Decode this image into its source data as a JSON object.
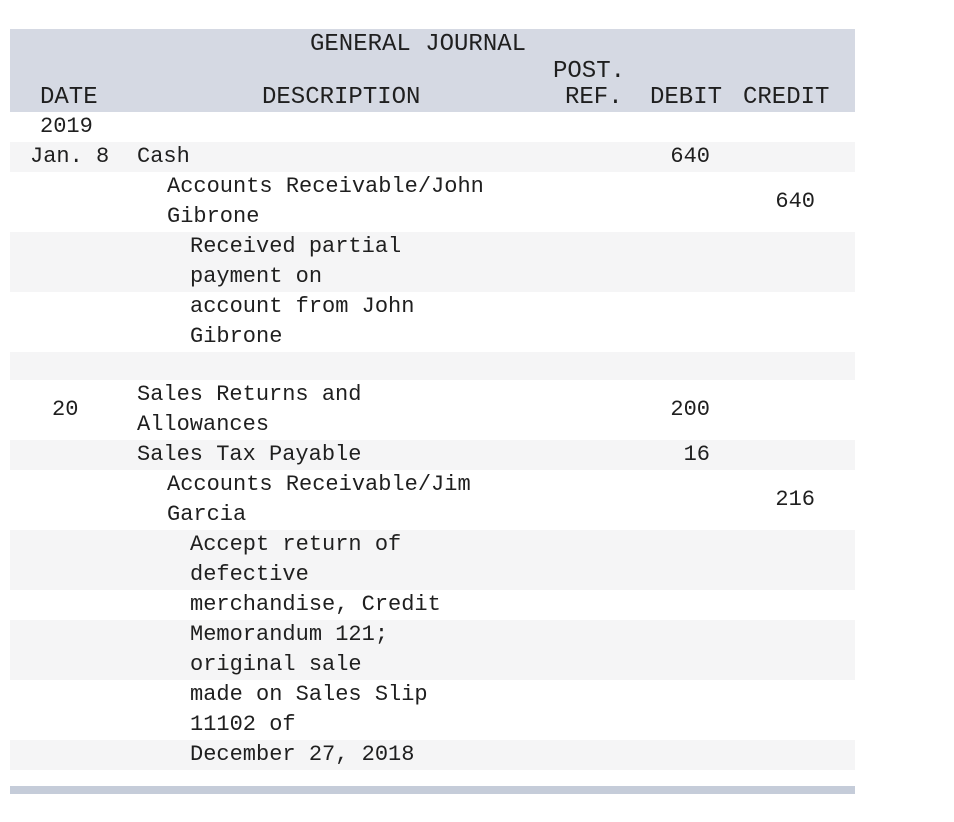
{
  "journal": {
    "title": "GENERAL JOURNAL",
    "colors": {
      "header_bg": "#d5d9e3",
      "stripe_bg": "#f5f5f6",
      "footer_bar": "#c5ccd9",
      "text": "#1f1f1f"
    },
    "columns": {
      "date": "DATE",
      "description": "DESCRIPTION",
      "post_ref_top": "POST.",
      "post_ref_bottom": "REF.",
      "debit": "DEBIT",
      "credit": "CREDIT"
    },
    "rows": [
      {
        "date": "2019",
        "date_kind": "year",
        "desc": "",
        "indent": 0,
        "debit": "",
        "credit": ""
      },
      {
        "date": "Jan. 8",
        "date_kind": "month_day",
        "desc": "Cash",
        "indent": 0,
        "debit": "640",
        "credit": ""
      },
      {
        "date": "",
        "date_kind": "none",
        "desc": "Accounts Receivable/John\nGibrone",
        "indent": 1,
        "debit": "",
        "credit": "640"
      },
      {
        "date": "",
        "date_kind": "none",
        "desc": "Received partial\npayment on",
        "indent": 2,
        "debit": "",
        "credit": ""
      },
      {
        "date": "",
        "date_kind": "none",
        "desc": "account from John\nGibrone",
        "indent": 2,
        "debit": "",
        "credit": ""
      },
      {
        "date": "",
        "date_kind": "none",
        "desc": "",
        "indent": 0,
        "debit": "",
        "credit": ""
      },
      {
        "date": "20",
        "date_kind": "day",
        "desc": "Sales Returns and\nAllowances",
        "indent": 0,
        "debit": "200",
        "credit": ""
      },
      {
        "date": "",
        "date_kind": "none",
        "desc": "Sales Tax Payable",
        "indent": 0,
        "debit": "16",
        "credit": ""
      },
      {
        "date": "",
        "date_kind": "none",
        "desc": "Accounts Receivable/Jim\nGarcia",
        "indent": 1,
        "debit": "",
        "credit": "216"
      },
      {
        "date": "",
        "date_kind": "none",
        "desc": "Accept return of\ndefective",
        "indent": 2,
        "debit": "",
        "credit": ""
      },
      {
        "date": "",
        "date_kind": "none",
        "desc": "merchandise, Credit",
        "indent": 2,
        "debit": "",
        "credit": ""
      },
      {
        "date": "",
        "date_kind": "none",
        "desc": "Memorandum 121;\noriginal sale",
        "indent": 2,
        "debit": "",
        "credit": ""
      },
      {
        "date": "",
        "date_kind": "none",
        "desc": "made on Sales Slip\n11102 of",
        "indent": 2,
        "debit": "",
        "credit": ""
      },
      {
        "date": "",
        "date_kind": "none",
        "desc": "December 27, 2018",
        "indent": 2,
        "debit": "",
        "credit": ""
      }
    ]
  }
}
